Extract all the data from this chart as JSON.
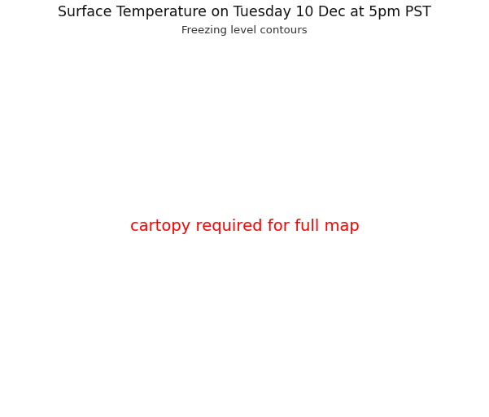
{
  "title": "Surface Temperature on Tuesday 10 Dec at 5pm PST",
  "subtitle": "Freezing level contours",
  "title_fontsize": 12.5,
  "subtitle_fontsize": 9.5,
  "background_color": "#ffffff",
  "ocean_color": "#c8d8ee",
  "map_extent_lon": [
    105,
    135
  ],
  "map_extent_lat": [
    0,
    30
  ],
  "contour_color": "#dd0000",
  "border_color": "#000000",
  "grid_color": "#9ab0cc",
  "land_low_color": "#c8782a",
  "land_high_color": "#a05828",
  "terrain_colors": [
    "#c87830",
    "#b86820",
    "#a85818",
    "#986010",
    "#a06820",
    "#b87830",
    "#c8983a",
    "#d8b050",
    "#d0c858",
    "#b8c848",
    "#88b838",
    "#58a828",
    "#389828",
    "#288040",
    "#206858",
    "#285870",
    "#304878",
    "#383870"
  ],
  "figsize": [
    6.01,
    5.13
  ],
  "dpi": 100
}
